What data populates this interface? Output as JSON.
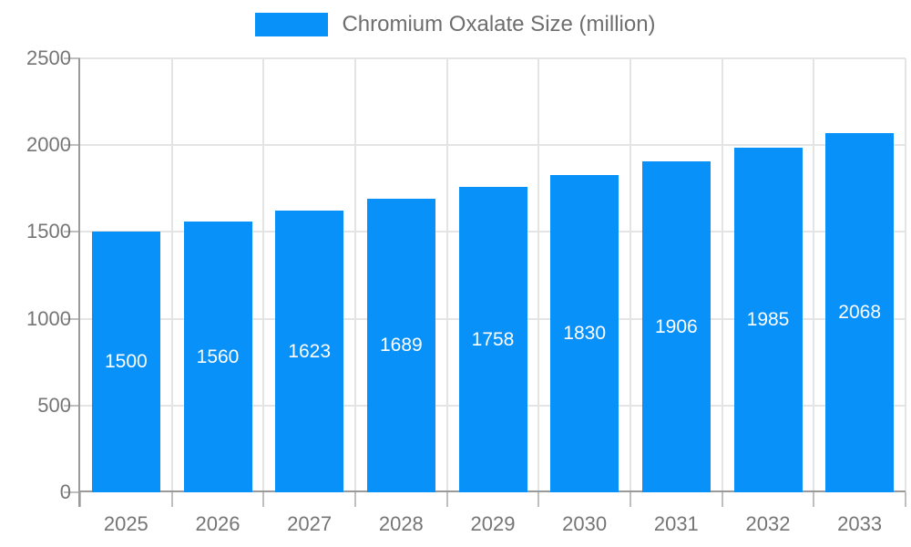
{
  "chart_data": {
    "type": "bar",
    "title": "Chromium Oxalate Size (million)",
    "series_name": "Chromium Oxalate Size (million)",
    "categories": [
      "2025",
      "2026",
      "2027",
      "2028",
      "2029",
      "2030",
      "2031",
      "2032",
      "2033"
    ],
    "values": [
      1500,
      1560,
      1623,
      1689,
      1758,
      1830,
      1906,
      1985,
      2068
    ],
    "xlabel": "",
    "ylabel": "",
    "ylim": [
      0,
      2500
    ],
    "yticks": [
      0,
      500,
      1000,
      1500,
      2000,
      2500
    ],
    "grid": true,
    "legend_position": "top",
    "bar_color": "#0991fa",
    "value_label_color": "#ffffff",
    "axis_label_color": "#757575",
    "legend_text_color": "#6e6e6e",
    "gridline_color": "#e4e4e4",
    "axis_line_color": "#9a9a9a"
  }
}
